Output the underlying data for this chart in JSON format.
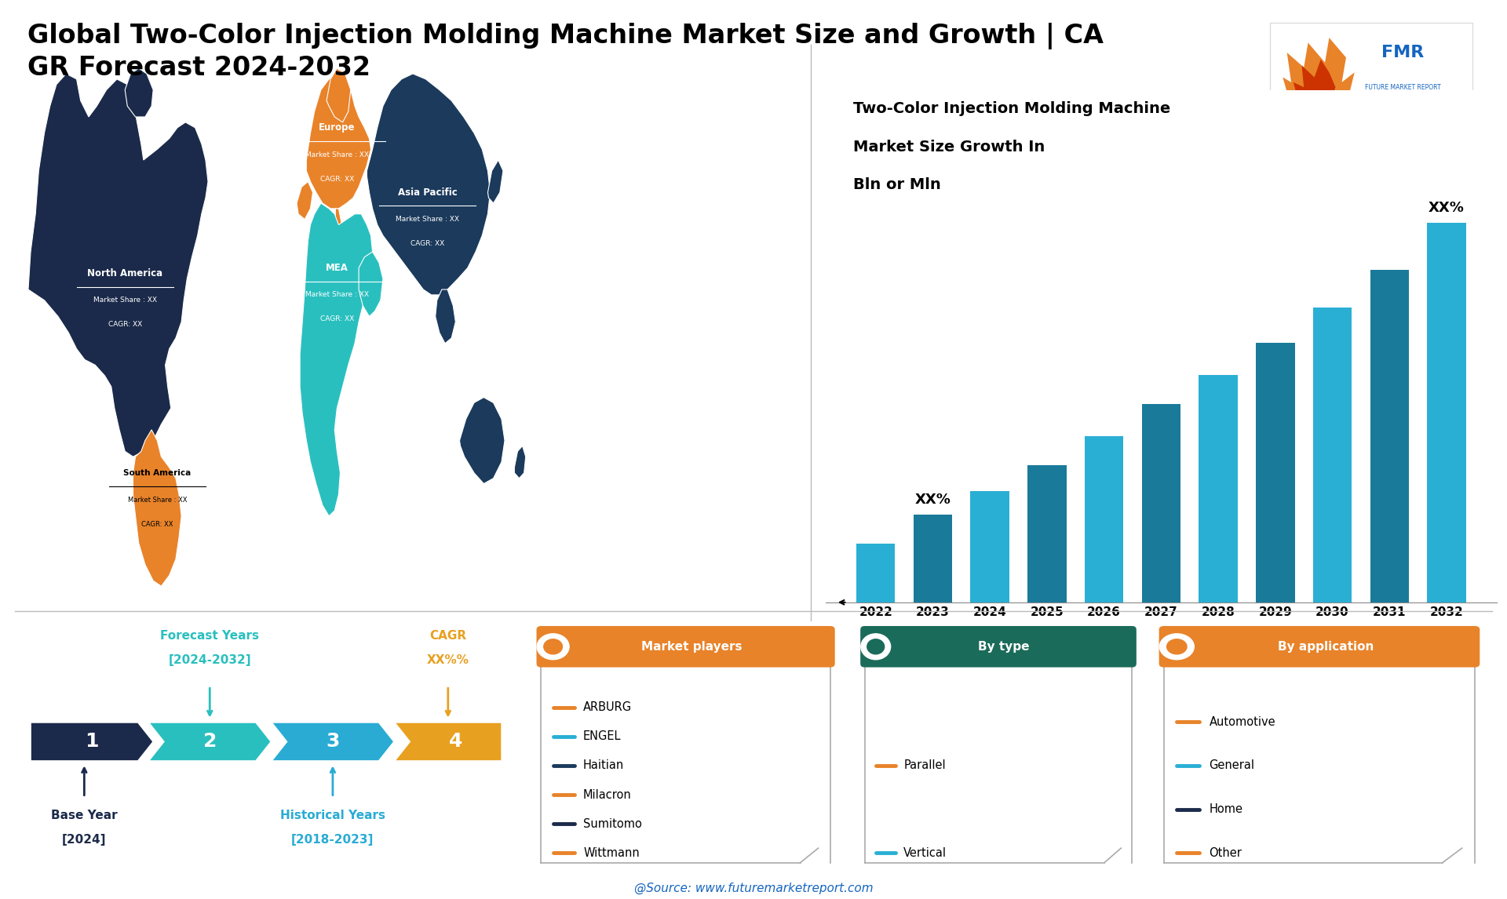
{
  "title": "Global Two-Color Injection Molding Machine Market Size and Growth | CA\nGR Forecast 2024-2032",
  "title_fontsize": 24,
  "background_color": "#ffffff",
  "bar_years": [
    "2022",
    "2023",
    "2024",
    "2025",
    "2026",
    "2027",
    "2028",
    "2029",
    "2030",
    "2031",
    "2032"
  ],
  "bar_values": [
    2.0,
    3.0,
    3.8,
    4.7,
    5.7,
    6.8,
    7.8,
    8.9,
    10.1,
    11.4,
    13.0
  ],
  "bar_colors": [
    "#2aafd4",
    "#1a7fa0",
    "#2aafd4",
    "#1a7fa0",
    "#2aafd4",
    "#1a7fa0",
    "#1a7fa0",
    "#1a7fa0",
    "#1a7fa0",
    "#1a7fa0",
    "#1a8fa8"
  ],
  "bar_label_2023": "XX%",
  "bar_label_2032": "XX%",
  "chart_title_line1": "Two-Color Injection Molding Machine",
  "chart_title_line2": "Market Size Growth In",
  "chart_title_line3": "Bln or Mln",
  "segment1_header": "Market players",
  "segment1_header_color": "#E8832A",
  "segment1_items": [
    "ARBURG",
    "ENGEL",
    "Haitian",
    "Milacron",
    "Sumitomo",
    "Wittmann"
  ],
  "segment1_colors": [
    "#E8832A",
    "#2aafd4",
    "#1B3A5C",
    "#E8832A",
    "#1B2A4A",
    "#E8832A"
  ],
  "segment2_header": "By type",
  "segment2_header_color": "#1B6B5A",
  "segment2_items": [
    "Parallel",
    "Vertical"
  ],
  "segment2_colors": [
    "#E8832A",
    "#2aafd4"
  ],
  "segment3_header": "By application",
  "segment3_header_color": "#E8832A",
  "segment3_items": [
    "Automotive",
    "General",
    "Home",
    "Other"
  ],
  "segment3_colors": [
    "#E8832A",
    "#2aafd4",
    "#1B2A4A",
    "#E8832A"
  ],
  "timeline_colors": [
    "#1B2A4A",
    "#2ABFBF",
    "#29ABD4",
    "#E8A020"
  ],
  "timeline_labels": [
    "1",
    "2",
    "3",
    "4"
  ],
  "base_year_label": "Base Year\n[2024]",
  "forecast_label": "Forecast Years\n[2024-2032]",
  "historical_label": "Historical Years\n[2018-2023]",
  "cagr_label": "CAGR\nXX%%",
  "forecast_color": "#2ABFBF",
  "cagr_color": "#E8A020",
  "base_year_color": "#1B2A4A",
  "historical_color": "#29ABD4",
  "source_text": "@Source: www.futuremarketreport.com",
  "na_color": "#1B2A4A",
  "sa_color": "#E8832A",
  "eu_color": "#E8832A",
  "mea_color": "#2ABFBF",
  "ap_color": "#1B3A5C",
  "au_color": "#1B3A5C"
}
